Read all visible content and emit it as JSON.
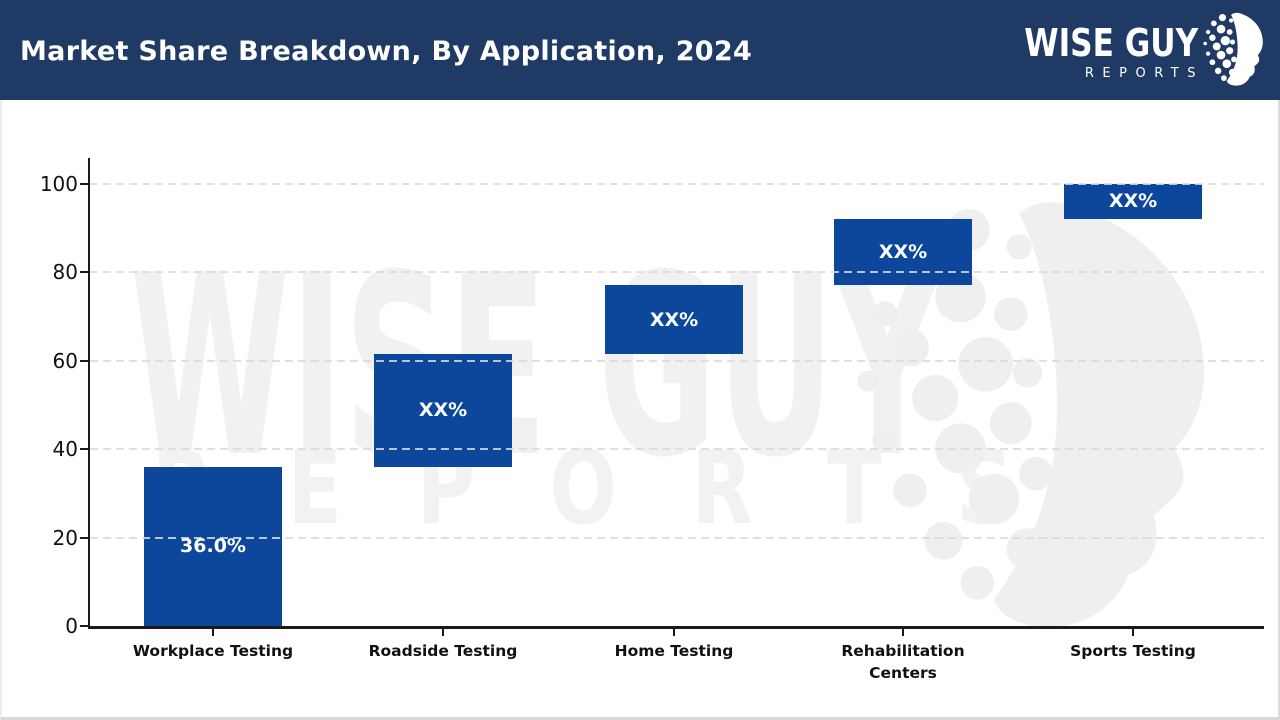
{
  "header": {
    "title": "Market Share Breakdown, By Application, 2024",
    "background_color": "#203a66",
    "logo": {
      "primary": "WISE GUY",
      "secondary": "REPORTS"
    }
  },
  "watermark": {
    "primary": "WISE GUY",
    "secondary": "R E P O R T S"
  },
  "chart_data": {
    "type": "bar",
    "subtype": "waterfall",
    "title": "Market Share Breakdown, By Application, 2024",
    "xlabel": "",
    "ylabel": "",
    "ylim": [
      0,
      105
    ],
    "y_ticks": [
      0,
      20,
      40,
      60,
      80,
      100
    ],
    "grid": "horizontal-dashed",
    "legend": "none",
    "bar_color": "#0c479c",
    "bar_label_color": "#ffffff",
    "categories": [
      "Workplace Testing",
      "Roadside Testing",
      "Home Testing",
      "Rehabilitation Centers",
      "Sports Testing"
    ],
    "segments": [
      {
        "category": "Workplace Testing",
        "start": 0,
        "end": 36,
        "label": "36.0%"
      },
      {
        "category": "Roadside Testing",
        "start": 36,
        "end": 61.5,
        "label": "XX%"
      },
      {
        "category": "Home Testing",
        "start": 61.5,
        "end": 77,
        "label": "XX%"
      },
      {
        "category": "Rehabilitation Centers",
        "start": 77,
        "end": 92,
        "label": "XX%"
      },
      {
        "category": "Sports Testing",
        "start": 92,
        "end": 100,
        "label": "XX%"
      }
    ]
  }
}
